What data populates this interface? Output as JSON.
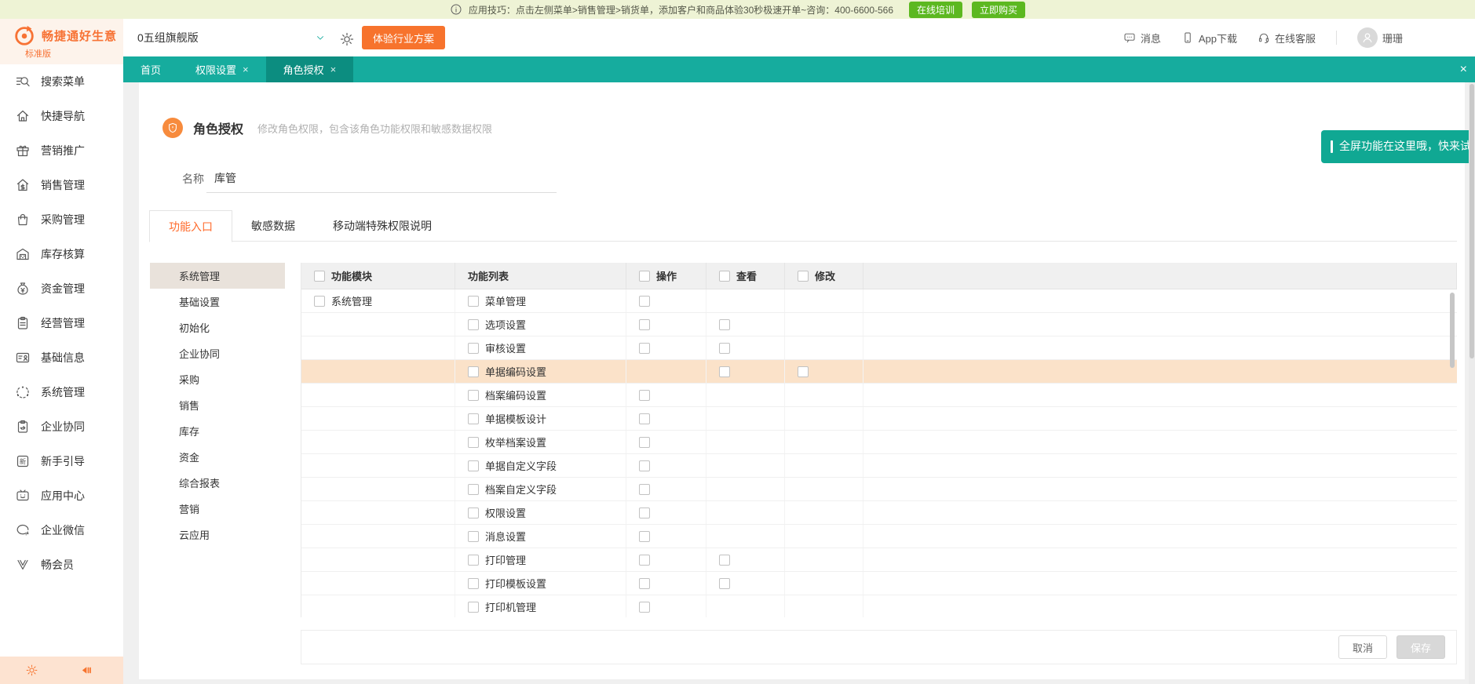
{
  "top_bar": {
    "tip": "应用技巧：点击左侧菜单>销售管理>销货单，添加客户和商品体验30秒极速开单~咨询：400-6600-566",
    "buttons": [
      {
        "label": "在线培训"
      },
      {
        "label": "立即购买"
      }
    ],
    "colors": {
      "background": "#eef3d5",
      "button_green": "#5cb820"
    }
  },
  "header": {
    "brand": {
      "name": "畅捷通好生意",
      "edition": "标准版",
      "color": "#f77234"
    },
    "org_selector": {
      "value": "0五组旗舰版"
    },
    "trial_button": "体验行业方案",
    "right": {
      "messages": "消息",
      "app_download": "App下载",
      "online_service": "在线客服",
      "user": "珊珊"
    }
  },
  "tab_bar": {
    "color": "#16ac9e",
    "active_color": "#0c8d80",
    "tabs": [
      {
        "label": "首页",
        "closable": false,
        "active": false
      },
      {
        "label": "权限设置",
        "closable": true,
        "active": false
      },
      {
        "label": "角色授权",
        "closable": true,
        "active": true
      }
    ]
  },
  "sidebar": {
    "items": [
      {
        "icon": "search-icon",
        "label": "搜索菜单"
      },
      {
        "icon": "home-icon",
        "label": "快捷导航"
      },
      {
        "icon": "gift-icon",
        "label": "营销推广"
      },
      {
        "icon": "sales-icon",
        "label": "销售管理"
      },
      {
        "icon": "bag-icon",
        "label": "采购管理"
      },
      {
        "icon": "warehouse-icon",
        "label": "库存核算"
      },
      {
        "icon": "money-icon",
        "label": "资金管理"
      },
      {
        "icon": "clipboard-icon",
        "label": "经营管理"
      },
      {
        "icon": "idcard-icon",
        "label": "基础信息"
      },
      {
        "icon": "system-icon",
        "label": "系统管理"
      },
      {
        "icon": "collab-icon",
        "label": "企业协同"
      },
      {
        "icon": "newbie-icon",
        "label": "新手引导"
      },
      {
        "icon": "appcenter-icon",
        "label": "应用中心"
      },
      {
        "icon": "wechat-icon",
        "label": "企业微信"
      },
      {
        "icon": "vip-icon",
        "label": "畅会员"
      }
    ]
  },
  "page": {
    "title": "角色授权",
    "subtitle": "修改角色权限，包含该角色功能权限和敏感数据权限",
    "name_label": "名称",
    "name_value": "库管",
    "tabs": [
      "功能入口",
      "敏感数据",
      "移动端特殊权限说明"
    ],
    "active_tab": "功能入口",
    "modules": [
      "系统管理",
      "基础设置",
      "初始化",
      "企业协同",
      "采购",
      "销售",
      "库存",
      "资金",
      "综合报表",
      "营销",
      "云应用"
    ],
    "active_module": "系统管理",
    "table": {
      "columns": [
        "功能模块",
        "功能列表",
        "操作",
        "查看",
        "修改"
      ],
      "rows": [
        {
          "module": "系统管理",
          "feature": "菜单管理",
          "op": true,
          "view": false,
          "edit": false,
          "highlight": false
        },
        {
          "module": "",
          "feature": "选项设置",
          "op": true,
          "view": true,
          "edit": false,
          "highlight": false
        },
        {
          "module": "",
          "feature": "审核设置",
          "op": true,
          "view": true,
          "edit": false,
          "highlight": false
        },
        {
          "module": "",
          "feature": "单据编码设置",
          "op": false,
          "view": true,
          "edit": true,
          "highlight": true
        },
        {
          "module": "",
          "feature": "档案编码设置",
          "op": true,
          "view": false,
          "edit": false,
          "highlight": false
        },
        {
          "module": "",
          "feature": "单据模板设计",
          "op": true,
          "view": false,
          "edit": false,
          "highlight": false
        },
        {
          "module": "",
          "feature": "枚举档案设置",
          "op": true,
          "view": false,
          "edit": false,
          "highlight": false
        },
        {
          "module": "",
          "feature": "单据自定义字段",
          "op": true,
          "view": false,
          "edit": false,
          "highlight": false
        },
        {
          "module": "",
          "feature": "档案自定义字段",
          "op": true,
          "view": false,
          "edit": false,
          "highlight": false
        },
        {
          "module": "",
          "feature": "权限设置",
          "op": true,
          "view": false,
          "edit": false,
          "highlight": false
        },
        {
          "module": "",
          "feature": "消息设置",
          "op": true,
          "view": false,
          "edit": false,
          "highlight": false
        },
        {
          "module": "",
          "feature": "打印管理",
          "op": true,
          "view": true,
          "edit": false,
          "highlight": false
        },
        {
          "module": "",
          "feature": "打印模板设置",
          "op": true,
          "view": true,
          "edit": false,
          "highlight": false
        },
        {
          "module": "",
          "feature": "打印机管理",
          "op": true,
          "view": false,
          "edit": false,
          "highlight": false
        }
      ],
      "highlight_color": "#fbe2c9"
    },
    "footer": {
      "cancel": "取消",
      "save": "保存"
    }
  },
  "tooltip": {
    "text": "全屏功能在这里哦，快来试试吧~",
    "color": "#10a893"
  }
}
